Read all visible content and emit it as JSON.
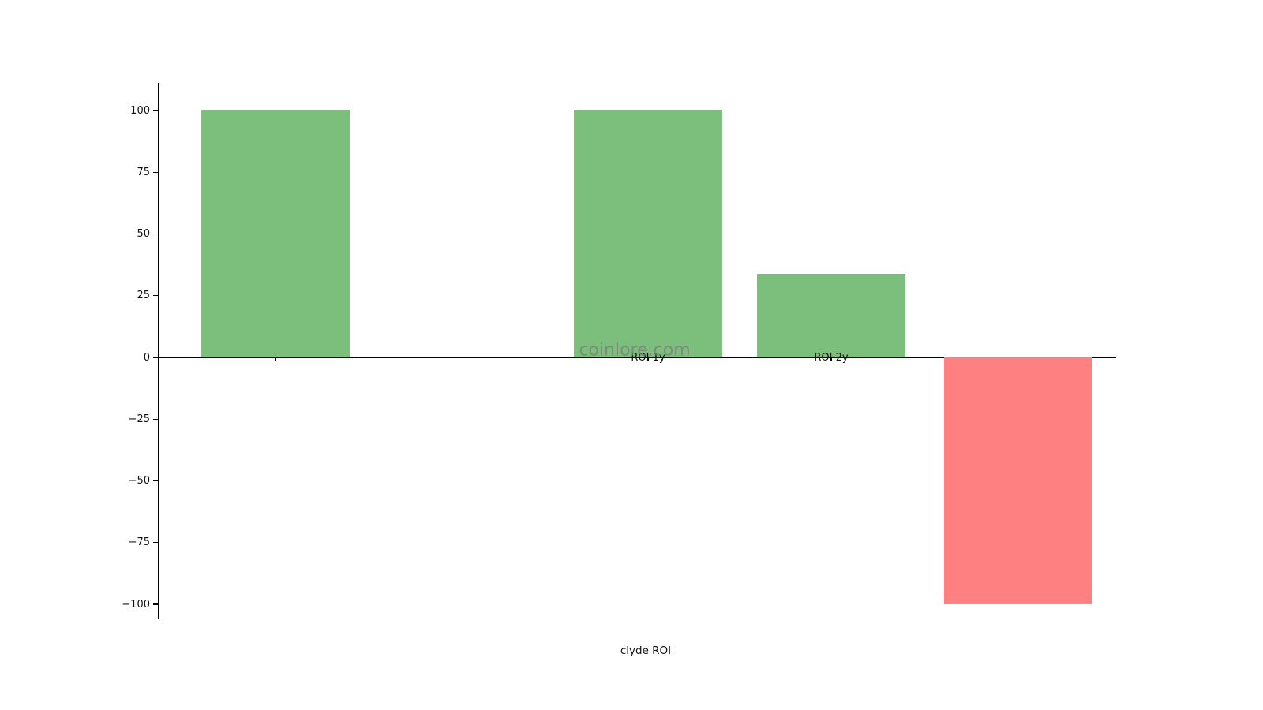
{
  "watermark": {
    "text": "coinlore.com",
    "color": "#7f7f7f"
  },
  "chart_data": {
    "type": "bar",
    "title": "",
    "xlabel": "clyde ROI",
    "ylabel": "",
    "categories": [
      "",
      "ROI 1y",
      "ROI 2y",
      ""
    ],
    "values": [
      100,
      100,
      34,
      -100
    ],
    "bar_colors": [
      "#7cbf7c",
      "#7cbf7c",
      "#7cbf7c",
      "#ff8080"
    ],
    "positive_color": "#7cbf7c",
    "negative_color": "#ff8080",
    "yticks": [
      100,
      75,
      50,
      25,
      0,
      -25,
      -50,
      -75,
      -100
    ],
    "ylim": [
      -111,
      111
    ],
    "grid": false,
    "legend_position": "none",
    "background_color": "#ffffff"
  }
}
